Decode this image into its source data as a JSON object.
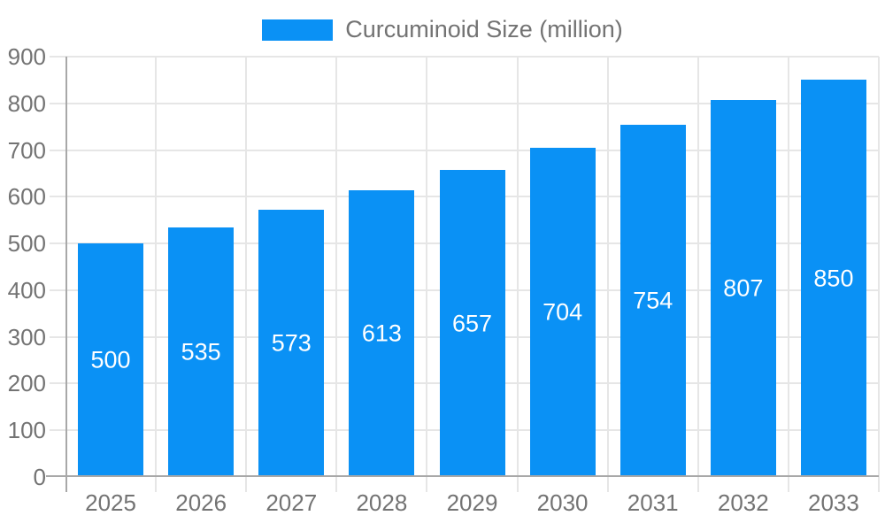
{
  "legend": {
    "label": "Curcuminoid Size (million)"
  },
  "chart_data": {
    "type": "bar",
    "title": "",
    "categories": [
      "2025",
      "2026",
      "2027",
      "2028",
      "2029",
      "2030",
      "2031",
      "2032",
      "2033"
    ],
    "values": [
      500,
      535,
      573,
      613,
      657,
      704,
      754,
      807,
      850
    ],
    "series_name": "Curcuminoid Size (million)",
    "xlabel": "",
    "ylabel": "",
    "ylim": [
      0,
      900
    ],
    "ytick_step": 100,
    "grid": true,
    "legend_position": "top",
    "bar_color": "#0a91f5",
    "value_label_color": "#ffffff",
    "axis_text_color": "#737373",
    "axis_line_color": "#a8a8a8",
    "grid_color": "#e6e6e6",
    "background_color": "#ffffff"
  }
}
